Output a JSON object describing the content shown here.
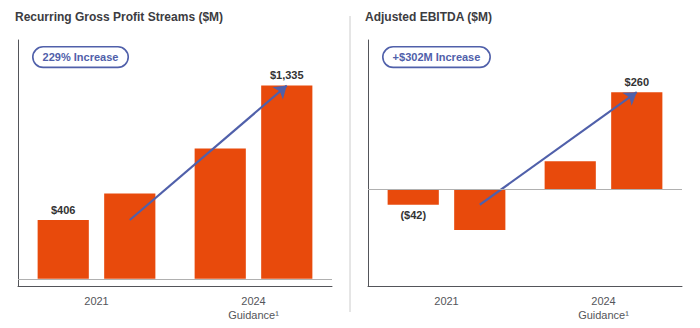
{
  "chart_data": [
    {
      "type": "bar",
      "title": "Recurring Gross Profit Streams ($M)",
      "categories": [
        "2021",
        "2024\nGuidance¹"
      ],
      "series": [
        {
          "color": "#e84a0c",
          "values": [
            406,
            900
          ],
          "value_labels": [
            "$406",
            null
          ]
        },
        {
          "color": "#e84a0c",
          "values": [
            590,
            1335
          ],
          "value_labels": [
            null,
            "$1,335"
          ]
        }
      ],
      "ylim": [
        -50,
        1650
      ],
      "grid": false,
      "tick_labels": "x",
      "annotations": [
        {
          "text": "229% Increase",
          "color": "#5060aa"
        }
      ]
    },
    {
      "type": "bar",
      "title": "Adjusted EBITDA ($M)",
      "categories": [
        "2021",
        "2024\nGuidance¹"
      ],
      "series": [
        {
          "color": "#e84a0c",
          "values": [
            -42,
            75
          ],
          "value_labels": [
            "($42)",
            null
          ]
        },
        {
          "color": "#e84a0c",
          "values": [
            -110,
            260
          ],
          "value_labels": [
            null,
            "$260"
          ]
        }
      ],
      "ylim": [
        -260,
        400
      ],
      "grid": false,
      "tick_labels": "x",
      "annotations": [
        {
          "text": "+$302M Increase",
          "color": "#5060aa"
        }
      ]
    }
  ]
}
